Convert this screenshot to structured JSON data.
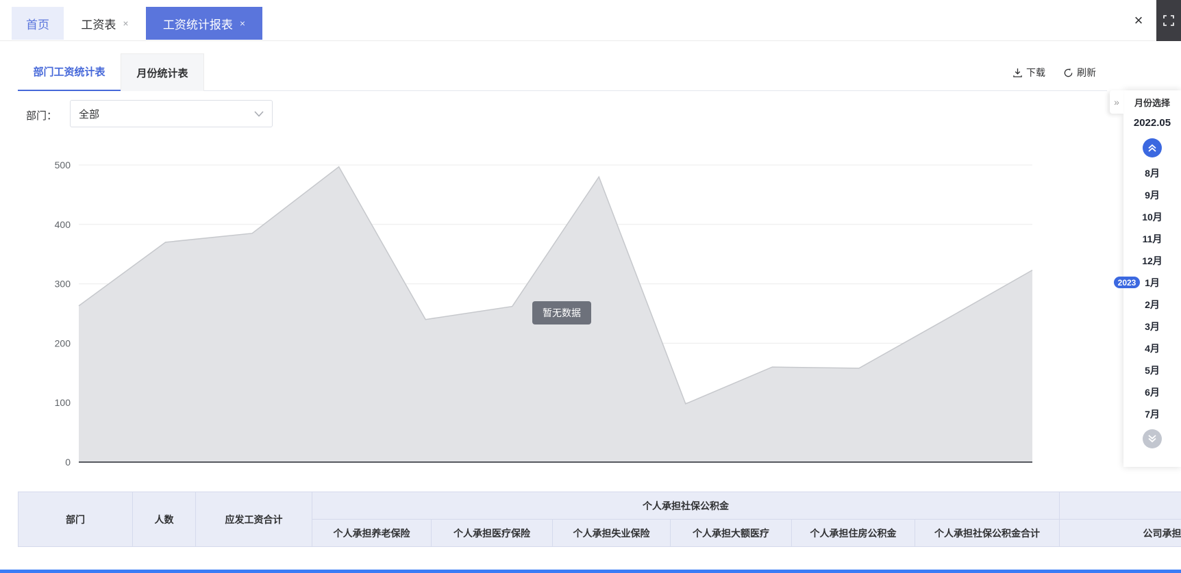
{
  "topbar": {
    "tabs": [
      {
        "label": "首页"
      },
      {
        "label": "工资表"
      },
      {
        "label": "工资统计报表"
      }
    ],
    "close_glyph": "×"
  },
  "window_controls": {
    "close_glyph": "×"
  },
  "subtabs": {
    "tabs": [
      {
        "label": "部门工资统计表"
      },
      {
        "label": "月份统计表"
      }
    ]
  },
  "toolbar": {
    "download_label": "下载",
    "refresh_label": "刷新"
  },
  "filter": {
    "department_label": "部门：",
    "department_value": "全部"
  },
  "chart_data": {
    "type": "area",
    "values": [
      263,
      370,
      385,
      497,
      240,
      262,
      480,
      98,
      160,
      158,
      240,
      323
    ],
    "ylim": [
      0,
      500
    ],
    "yticks": [
      0,
      100,
      200,
      300,
      400,
      500
    ],
    "fill_color": "#e2e3e6",
    "line_color": "#c6c8cc",
    "grid": true,
    "empty_text": "暂无数据"
  },
  "month_panel": {
    "collapse_icon": "»",
    "title": "月份选择",
    "current": "2022.05",
    "months": [
      "8月",
      "9月",
      "10月",
      "11月",
      "12月",
      "1月",
      "2月",
      "3月",
      "4月",
      "5月",
      "6月",
      "7月"
    ],
    "year_badge": "2023"
  },
  "table": {
    "simple_columns": [
      "部门",
      "人数",
      "应发工资合计"
    ],
    "group_header": "个人承担社保公积金",
    "group_columns": [
      "个人承担养老保险",
      "个人承担医疗保险",
      "个人承担失业保险",
      "个人承担大额医疗",
      "个人承担住房公积金",
      "个人承担社保公积金合计"
    ],
    "trailing_column": "公司承担"
  },
  "colors": {
    "active_tab_blue": "#5a75dc",
    "subtab_blue": "#4668d9",
    "panel_button_blue": "#3b68e0",
    "bottom_bar_blue": "#3b7cf6",
    "area_fill": "#e2e3e6"
  }
}
